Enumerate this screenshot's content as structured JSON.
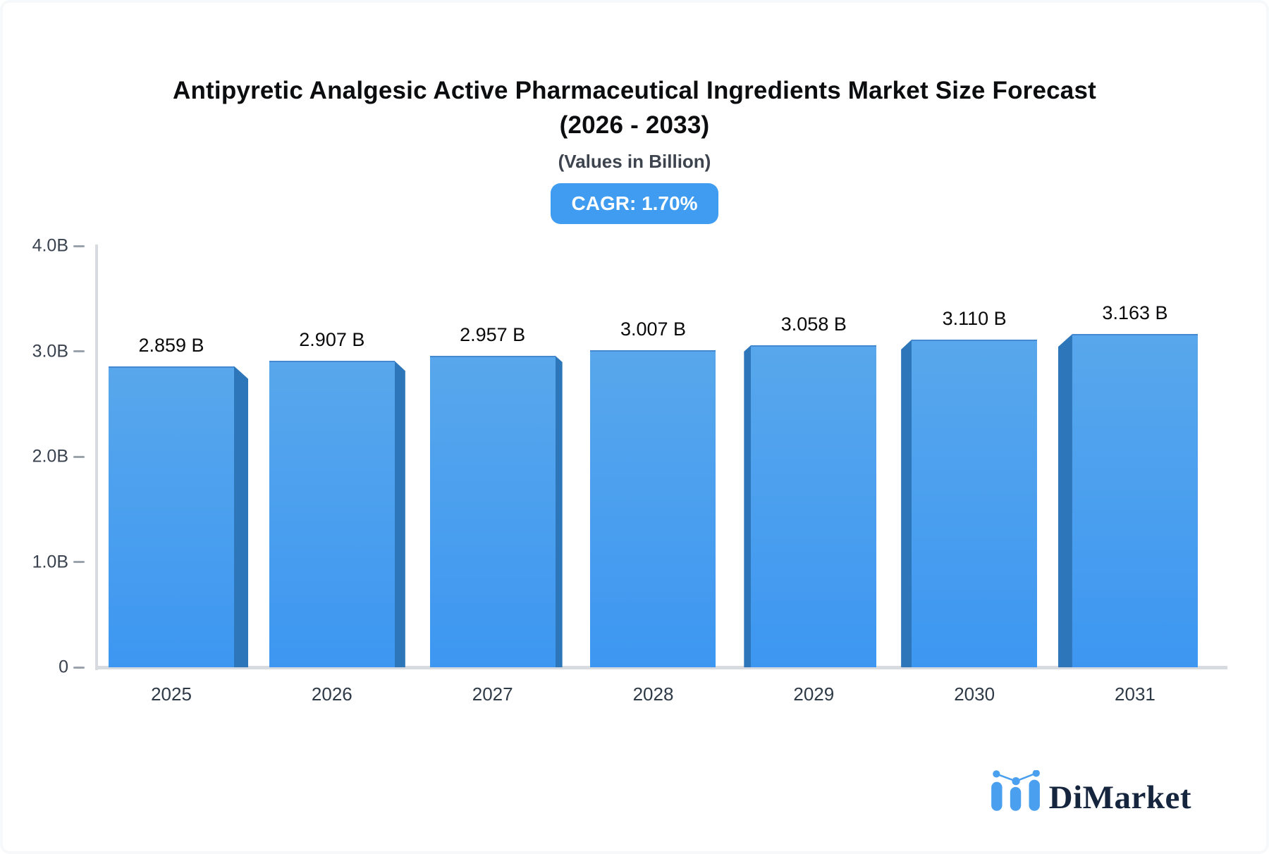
{
  "header": {
    "title_line1": "Antipyretic Analgesic Active Pharmaceutical Ingredients Market Size Forecast",
    "title_line2": "(2026 - 2033)",
    "subtitle": "(Values in Billion)",
    "cagr_badge": "CAGR: 1.70%"
  },
  "chart_data": {
    "type": "bar",
    "title": "Antipyretic Analgesic Active Pharmaceutical Ingredients Market Size Forecast (2026 - 2033)",
    "subtitle": "(Values in Billion)",
    "cagr": "1.70%",
    "categories": [
      "2025",
      "2026",
      "2027",
      "2028",
      "2029",
      "2030",
      "2031"
    ],
    "values": [
      2.859,
      2.907,
      2.957,
      3.007,
      3.058,
      3.11,
      3.163
    ],
    "value_labels": [
      "2.859 B",
      "2.907 B",
      "2.957 B",
      "3.007 B",
      "3.058 B",
      "3.110 B",
      "3.163 B"
    ],
    "unit": "Billion",
    "xlabel": "",
    "ylabel": "",
    "ylim": [
      0,
      4.0
    ],
    "yticks": [
      {
        "value": 0.0,
        "label": "0"
      },
      {
        "value": 1.0,
        "label": "1.0B"
      },
      {
        "value": 2.0,
        "label": "2.0B"
      },
      {
        "value": 3.0,
        "label": "3.0B"
      },
      {
        "value": 4.0,
        "label": "4.0B"
      }
    ],
    "grid": false,
    "legend": false,
    "style": "3d-extruded-bars"
  },
  "colors": {
    "bar_top": "#58a7ec",
    "bar_bottom": "#3d97f1",
    "bar_side": "#2e76ba",
    "badge_bg": "#3f9cf1",
    "axis_line": "#d7dade",
    "tick": "#9aa2ab",
    "brand_navy": "#16253e",
    "brand_blue": "#4aa0ef"
  },
  "footer": {
    "brand": "DiMarket",
    "logo_icon": "bar-line-chart-icon"
  }
}
